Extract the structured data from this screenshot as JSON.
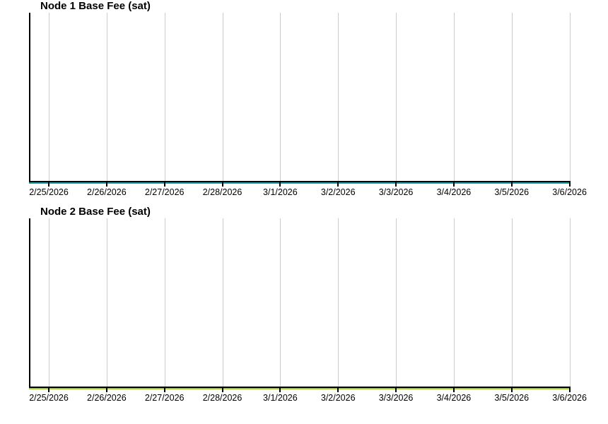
{
  "page": {
    "background_color": "#ffffff",
    "axis_color": "#000000",
    "gridline_color": "#cccccc"
  },
  "chart_data": [
    {
      "type": "line",
      "title": "Node 1 Base Fee (sat)",
      "x": [
        "2/25/2026",
        "2/26/2026",
        "2/27/2026",
        "2/28/2026",
        "3/1/2026",
        "3/2/2026",
        "3/3/2026",
        "3/4/2026",
        "3/5/2026",
        "3/6/2026"
      ],
      "series": [
        {
          "name": "Node 1 Base Fee",
          "values": [
            0,
            0,
            0,
            0,
            0,
            0,
            0,
            0,
            0,
            0
          ],
          "color": "#22A0AA"
        }
      ],
      "xlabel": "",
      "ylabel": "",
      "y_axis_labels": "none",
      "grid": "vertical",
      "legend": "none",
      "shape_note": "flat constant line hugging the x-axis baseline"
    },
    {
      "type": "line",
      "title": "Node 2 Base Fee (sat)",
      "x": [
        "2/25/2026",
        "2/26/2026",
        "2/27/2026",
        "2/28/2026",
        "3/1/2026",
        "3/2/2026",
        "3/3/2026",
        "3/4/2026",
        "3/5/2026",
        "3/6/2026"
      ],
      "series": [
        {
          "name": "Node 2 Base Fee",
          "values": [
            0,
            0,
            0,
            0,
            0,
            0,
            0,
            0,
            0,
            0
          ],
          "color": "#9ACD32"
        }
      ],
      "xlabel": "",
      "ylabel": "",
      "y_axis_labels": "none",
      "grid": "vertical",
      "legend": "none",
      "shape_note": "flat constant line hugging the x-axis baseline"
    }
  ]
}
